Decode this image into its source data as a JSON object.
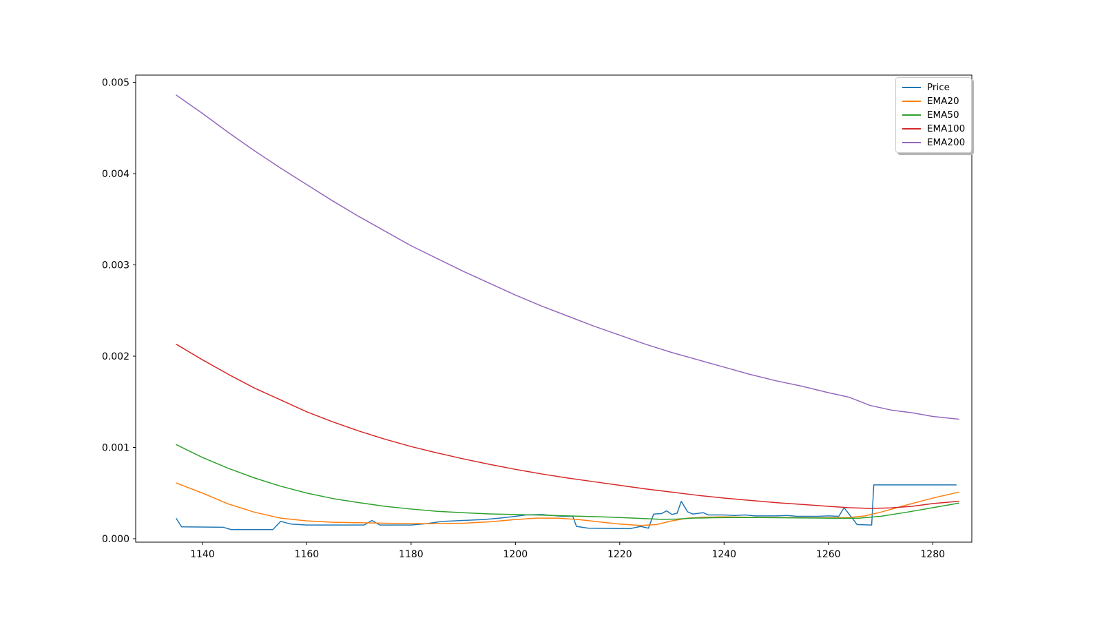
{
  "figure": {
    "background": "#ffffff",
    "axis_text_color": "#000000",
    "spine_color": "#000000"
  },
  "chart_data": {
    "type": "line",
    "title": "",
    "xlabel": "",
    "ylabel": "",
    "grid": "off",
    "xlim": [
      1127.2,
      1287.5
    ],
    "ylim": [
      -3.78e-05,
      0.00508
    ],
    "x_ticks": {
      "values": [
        1140,
        1160,
        1180,
        1200,
        1220,
        1240,
        1260,
        1280
      ],
      "labels": [
        "1140",
        "1160",
        "1180",
        "1200",
        "1220",
        "1240",
        "1260",
        "1280"
      ]
    },
    "y_ticks": {
      "values": [
        0.0,
        0.001,
        0.002,
        0.003,
        0.004,
        0.005
      ],
      "labels": [
        "0.000",
        "0.001",
        "0.002",
        "0.003",
        "0.004",
        "0.005"
      ]
    },
    "legend": {
      "position": "upper right",
      "border_color": "#cccccc",
      "background": "#ffffff",
      "shadow_color": "#b5b5b5",
      "entries": [
        "Price",
        "EMA20",
        "EMA50",
        "EMA100",
        "EMA200"
      ]
    },
    "series": [
      {
        "name": "Price",
        "color": "#1f77b4",
        "line_width": 1.5,
        "points": [
          [
            1135,
            0.00022
          ],
          [
            1136,
            0.00013
          ],
          [
            1144,
            0.000125
          ],
          [
            1145.5,
            0.0001
          ],
          [
            1153.5,
            0.0001
          ],
          [
            1155,
            0.00019
          ],
          [
            1157,
            0.00016
          ],
          [
            1160,
            0.00015
          ],
          [
            1166,
            0.00015
          ],
          [
            1171,
            0.00015
          ],
          [
            1172.5,
            0.0002
          ],
          [
            1174,
            0.00015
          ],
          [
            1180,
            0.00015
          ],
          [
            1183,
            0.000165
          ],
          [
            1186,
            0.00019
          ],
          [
            1190,
            0.0002
          ],
          [
            1194,
            0.00021
          ],
          [
            1197,
            0.000225
          ],
          [
            1200,
            0.000245
          ],
          [
            1202,
            0.00026
          ],
          [
            1205,
            0.000265
          ],
          [
            1207,
            0.000255
          ],
          [
            1209,
            0.000245
          ],
          [
            1211,
            0.000245
          ],
          [
            1211.7,
            0.000135
          ],
          [
            1214,
            0.000115
          ],
          [
            1222,
            0.00011
          ],
          [
            1224,
            0.000135
          ],
          [
            1225.5,
            0.000115
          ],
          [
            1226.5,
            0.00027
          ],
          [
            1228,
            0.000275
          ],
          [
            1229,
            0.000305
          ],
          [
            1230,
            0.000265
          ],
          [
            1231,
            0.00028
          ],
          [
            1231.8,
            0.00041
          ],
          [
            1233,
            0.000295
          ],
          [
            1234,
            0.00027
          ],
          [
            1236,
            0.000285
          ],
          [
            1237,
            0.00026
          ],
          [
            1240,
            0.00026
          ],
          [
            1242,
            0.000255
          ],
          [
            1244,
            0.00026
          ],
          [
            1246,
            0.00025
          ],
          [
            1250,
            0.00025
          ],
          [
            1252,
            0.000255
          ],
          [
            1254,
            0.000245
          ],
          [
            1258,
            0.000245
          ],
          [
            1260,
            0.00025
          ],
          [
            1262,
            0.000245
          ],
          [
            1263,
            0.00034
          ],
          [
            1264.5,
            0.00023
          ],
          [
            1265.5,
            0.000155
          ],
          [
            1268.3,
            0.00015
          ],
          [
            1268.7,
            0.00059
          ],
          [
            1284.5,
            0.00059
          ]
        ]
      },
      {
        "name": "EMA20",
        "color": "#ff7f0e",
        "line_width": 1.5,
        "points": [
          [
            1135,
            0.00061
          ],
          [
            1140,
            0.0005
          ],
          [
            1145,
            0.00038
          ],
          [
            1150,
            0.00029
          ],
          [
            1155,
            0.000225
          ],
          [
            1160,
            0.000195
          ],
          [
            1165,
            0.00018
          ],
          [
            1170,
            0.000175
          ],
          [
            1175,
            0.00017
          ],
          [
            1180,
            0.000165
          ],
          [
            1185,
            0.000165
          ],
          [
            1190,
            0.00017
          ],
          [
            1195,
            0.000185
          ],
          [
            1200,
            0.00021
          ],
          [
            1204,
            0.000225
          ],
          [
            1208,
            0.000225
          ],
          [
            1212,
            0.00021
          ],
          [
            1216,
            0.000185
          ],
          [
            1220,
            0.00016
          ],
          [
            1224,
            0.000145
          ],
          [
            1227,
            0.000155
          ],
          [
            1230,
            0.000195
          ],
          [
            1233,
            0.000225
          ],
          [
            1236,
            0.000235
          ],
          [
            1240,
            0.00024
          ],
          [
            1245,
            0.000235
          ],
          [
            1250,
            0.000233
          ],
          [
            1255,
            0.00023
          ],
          [
            1260,
            0.000228
          ],
          [
            1264,
            0.000232
          ],
          [
            1267,
            0.00025
          ],
          [
            1270,
            0.00029
          ],
          [
            1275,
            0.00037
          ],
          [
            1280,
            0.000445
          ],
          [
            1285,
            0.00051
          ]
        ]
      },
      {
        "name": "EMA50",
        "color": "#2ca02c",
        "line_width": 1.5,
        "points": [
          [
            1135,
            0.00103
          ],
          [
            1140,
            0.00089
          ],
          [
            1145,
            0.00077
          ],
          [
            1150,
            0.000665
          ],
          [
            1155,
            0.000575
          ],
          [
            1160,
            0.0005
          ],
          [
            1165,
            0.00044
          ],
          [
            1170,
            0.000395
          ],
          [
            1175,
            0.000355
          ],
          [
            1180,
            0.000325
          ],
          [
            1185,
            0.0003
          ],
          [
            1190,
            0.000285
          ],
          [
            1195,
            0.000272
          ],
          [
            1200,
            0.000265
          ],
          [
            1205,
            0.000258
          ],
          [
            1210,
            0.00025
          ],
          [
            1215,
            0.000242
          ],
          [
            1220,
            0.000232
          ],
          [
            1225,
            0.00022
          ],
          [
            1228,
            0.000212
          ],
          [
            1231,
            0.000215
          ],
          [
            1234,
            0.000225
          ],
          [
            1238,
            0.00023
          ],
          [
            1242,
            0.000232
          ],
          [
            1246,
            0.000232
          ],
          [
            1250,
            0.00023
          ],
          [
            1254,
            0.000228
          ],
          [
            1258,
            0.000226
          ],
          [
            1262,
            0.000224
          ],
          [
            1266,
            0.000225
          ],
          [
            1270,
            0.000245
          ],
          [
            1275,
            0.00029
          ],
          [
            1280,
            0.00034
          ],
          [
            1285,
            0.00039
          ]
        ]
      },
      {
        "name": "EMA100",
        "color": "#d62728",
        "line_width": 1.5,
        "points": [
          [
            1135,
            0.00213
          ],
          [
            1140,
            0.00196
          ],
          [
            1145,
            0.0018
          ],
          [
            1150,
            0.00165
          ],
          [
            1155,
            0.00152
          ],
          [
            1160,
            0.00139
          ],
          [
            1165,
            0.00128
          ],
          [
            1170,
            0.00118
          ],
          [
            1175,
            0.00109
          ],
          [
            1180,
            0.00101
          ],
          [
            1185,
            0.00094
          ],
          [
            1190,
            0.000875
          ],
          [
            1195,
            0.000815
          ],
          [
            1200,
            0.00076
          ],
          [
            1205,
            0.00071
          ],
          [
            1210,
            0.000665
          ],
          [
            1215,
            0.000625
          ],
          [
            1220,
            0.000585
          ],
          [
            1225,
            0.000545
          ],
          [
            1230,
            0.00051
          ],
          [
            1235,
            0.000475
          ],
          [
            1240,
            0.000445
          ],
          [
            1245,
            0.00042
          ],
          [
            1250,
            0.000395
          ],
          [
            1255,
            0.000375
          ],
          [
            1260,
            0.000355
          ],
          [
            1264,
            0.00034
          ],
          [
            1268,
            0.000332
          ],
          [
            1272,
            0.000338
          ],
          [
            1276,
            0.000355
          ],
          [
            1280,
            0.000385
          ],
          [
            1285,
            0.00041
          ]
        ]
      },
      {
        "name": "EMA200",
        "color": "#9467bd",
        "line_width": 1.5,
        "points": [
          [
            1135,
            0.00486
          ],
          [
            1140,
            0.00466
          ],
          [
            1145,
            0.00445
          ],
          [
            1150,
            0.00425
          ],
          [
            1155,
            0.00406
          ],
          [
            1160,
            0.00388
          ],
          [
            1165,
            0.0037
          ],
          [
            1170,
            0.00353
          ],
          [
            1175,
            0.00337
          ],
          [
            1180,
            0.00321
          ],
          [
            1185,
            0.00307
          ],
          [
            1190,
            0.00293
          ],
          [
            1195,
            0.0028
          ],
          [
            1200,
            0.00267
          ],
          [
            1205,
            0.00255
          ],
          [
            1210,
            0.00244
          ],
          [
            1215,
            0.00233
          ],
          [
            1220,
            0.00223
          ],
          [
            1225,
            0.00213
          ],
          [
            1230,
            0.00204
          ],
          [
            1235,
            0.00196
          ],
          [
            1240,
            0.00188
          ],
          [
            1245,
            0.0018
          ],
          [
            1250,
            0.00173
          ],
          [
            1255,
            0.00167
          ],
          [
            1260,
            0.0016
          ],
          [
            1264,
            0.00155
          ],
          [
            1268,
            0.00146
          ],
          [
            1272,
            0.00141
          ],
          [
            1276,
            0.00138
          ],
          [
            1280,
            0.00134
          ],
          [
            1285,
            0.00131
          ]
        ]
      }
    ]
  }
}
